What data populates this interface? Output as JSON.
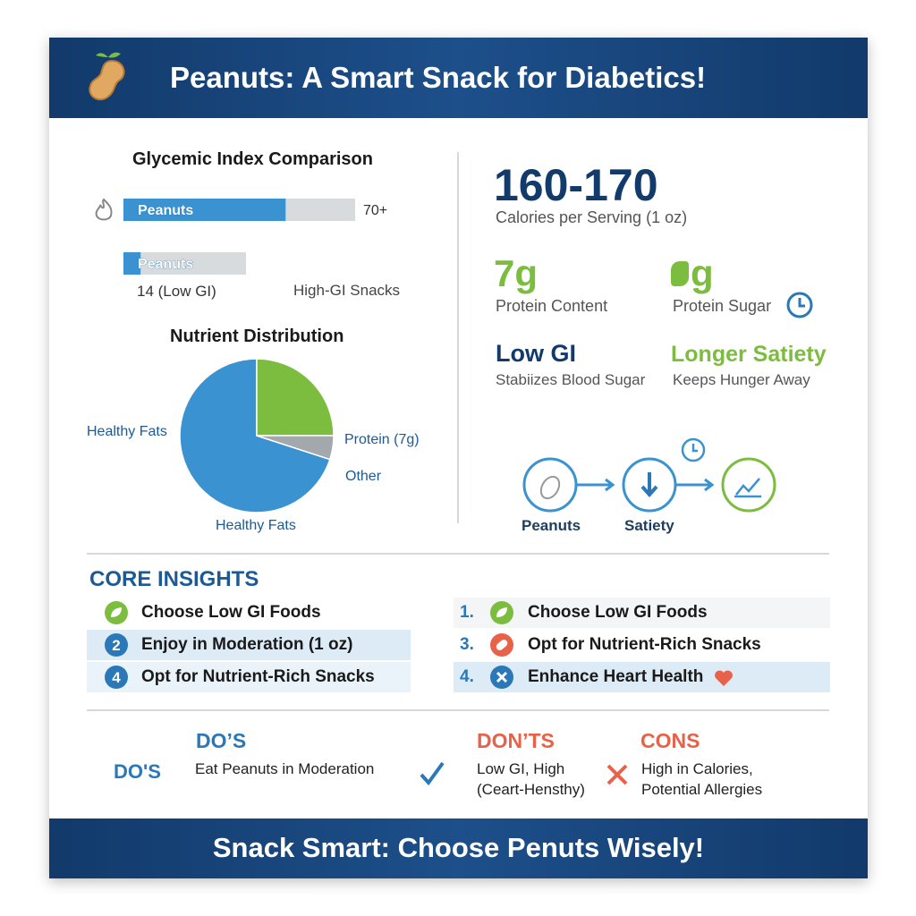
{
  "header": {
    "title": "Peanuts: A Smart Snack for Diabetics!"
  },
  "gi_chart": {
    "type": "bar",
    "title": "Glycemic Index Comparison",
    "categories": [
      "Peanuts",
      "Peanuts"
    ],
    "values": [
      70,
      14
    ],
    "value_labels": [
      "70+",
      "14 (Low GI)"
    ],
    "xlim": [
      0,
      100
    ],
    "compare_label": "High-GI Snacks",
    "color": "#3a93d0"
  },
  "pie": {
    "type": "pie",
    "title": "Nutrient Distribution",
    "categories": [
      "Healthy Fats",
      "Protein (7g)",
      "Other"
    ],
    "values": [
      70,
      25,
      5
    ],
    "colors": [
      "#3a93d0",
      "#7cbc3f",
      "#a3a8ad"
    ],
    "bottom_label": "Healthy Fats"
  },
  "stats": {
    "calories": {
      "value": "160-170",
      "label": "Calories per Serving (1 oz)"
    },
    "items": [
      {
        "value": "7g",
        "label": "Protein Content"
      },
      {
        "value": "g",
        "label": "Protein Sugar"
      },
      {
        "value": "Low GI",
        "label": "Stabiizes Blood Sugar"
      },
      {
        "value": "Longer Satiety",
        "label": "Keeps Hunger Away"
      }
    ]
  },
  "flow": [
    "Peanuts",
    "Satiety"
  ],
  "insights": {
    "title": "CORE INSIGHTS",
    "left": [
      {
        "num": null,
        "text": "Choose Low GI Foods"
      },
      {
        "num": "2",
        "text": "Enjoy in Moderation (1 oz)"
      },
      {
        "num": "4",
        "text": "Opt for Nutrient-Rich Snacks"
      }
    ],
    "right": [
      {
        "num": "1.",
        "text": "Choose Low GI Foods"
      },
      {
        "num": "3.",
        "text": "Opt for Nutrient-Rich Snacks"
      },
      {
        "num": "4.",
        "text": "Enhance Heart Health"
      }
    ]
  },
  "dos": {
    "side_label": "DO'S",
    "columns": [
      {
        "title": "DO’S",
        "lines": [
          "Eat Peanuts in Moderation"
        ]
      },
      {
        "title": "DON’TS",
        "lines": [
          "Low GI, High",
          "(Ceart-Hensthy)"
        ]
      },
      {
        "title": "CONS",
        "lines": [
          "High in Calories,",
          "Potential Allergies"
        ]
      }
    ]
  },
  "footer": {
    "text": "Snack Smart: Choose Penuts Wisely!"
  }
}
